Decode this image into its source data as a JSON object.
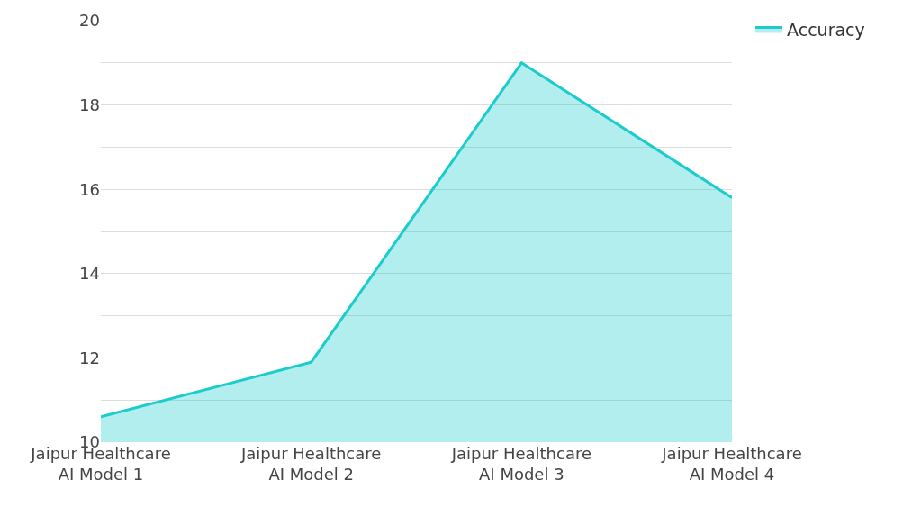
{
  "chart_data": {
    "type": "area",
    "categories": [
      "Jaipur Healthcare AI Model 1",
      "Jaipur Healthcare AI Model 2",
      "Jaipur Healthcare AI Model 3",
      "Jaipur Healthcare AI Model 4"
    ],
    "series": [
      {
        "name": "Accuracy",
        "color": "#1ccccc",
        "values": [
          10.6,
          11.9,
          19.0,
          15.8
        ]
      }
    ],
    "ylim": [
      10,
      20
    ],
    "yticks": [
      10,
      {
        "value": 11,
        "label": null
      },
      12,
      {
        "value": 13,
        "label": null
      },
      14,
      {
        "value": 15,
        "label": null
      },
      16,
      {
        "value": 17,
        "label": null
      },
      18,
      {
        "value": 19,
        "label": null
      },
      20
    ],
    "grid": "y",
    "legend": "top right"
  }
}
